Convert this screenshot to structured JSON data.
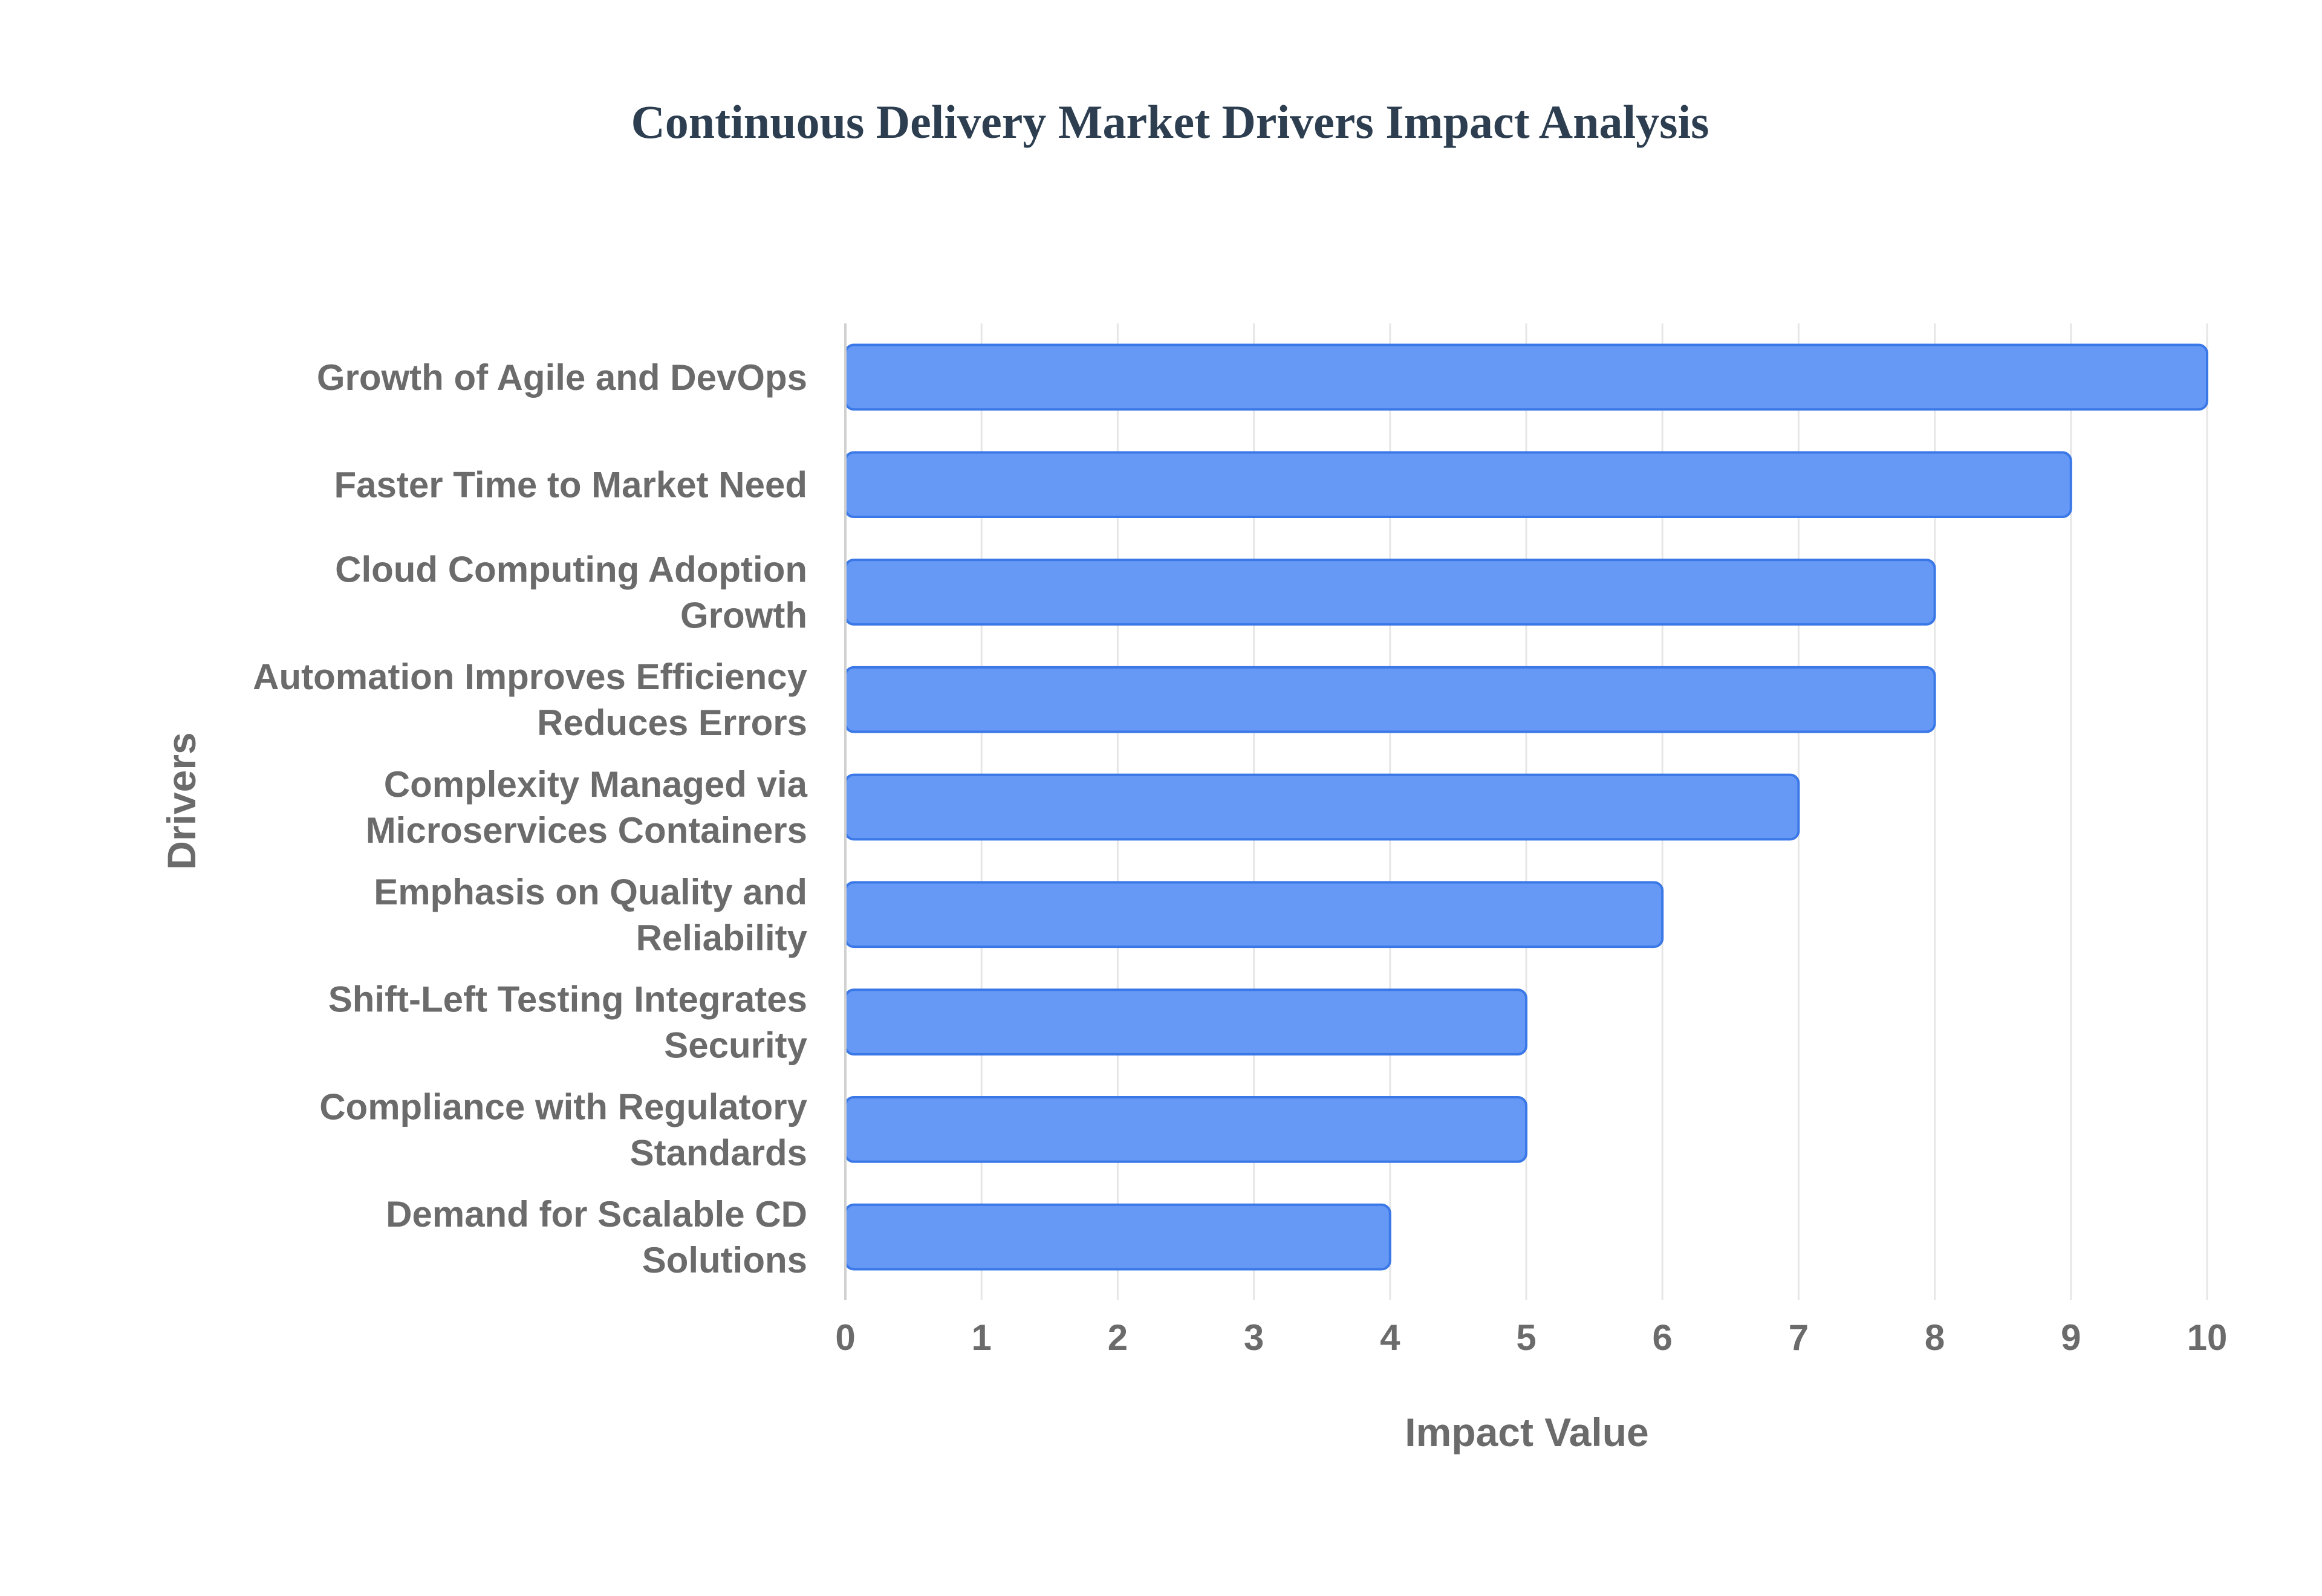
{
  "chart_data": {
    "type": "bar",
    "orientation": "horizontal",
    "title": "Continuous Delivery Market Drivers Impact Analysis",
    "xlabel": "Impact Value",
    "ylabel": "Drivers",
    "xlim": [
      0,
      10
    ],
    "x_ticks": [
      "0",
      "1",
      "2",
      "3",
      "4",
      "5",
      "6",
      "7",
      "8",
      "9",
      "10"
    ],
    "grid": true,
    "legend": "none",
    "colors": {
      "bar_fill": "#6699f5",
      "bar_stroke": "#3b78e7",
      "grid": "#e6e6e6",
      "axis": "#d0d0d0"
    },
    "categories": [
      [
        "Growth of Agile and DevOps"
      ],
      [
        "Faster Time to Market Need"
      ],
      [
        "Cloud Computing Adoption",
        "Growth"
      ],
      [
        "Automation Improves Efficiency",
        "Reduces Errors"
      ],
      [
        "Complexity Managed via",
        "Microservices Containers"
      ],
      [
        "Emphasis on Quality and",
        "Reliability"
      ],
      [
        "Shift-Left Testing Integrates",
        "Security"
      ],
      [
        "Compliance with Regulatory",
        "Standards"
      ],
      [
        "Demand for Scalable CD",
        "Solutions"
      ]
    ],
    "values": [
      10,
      9,
      8,
      8,
      7,
      6,
      5,
      5,
      4
    ]
  }
}
